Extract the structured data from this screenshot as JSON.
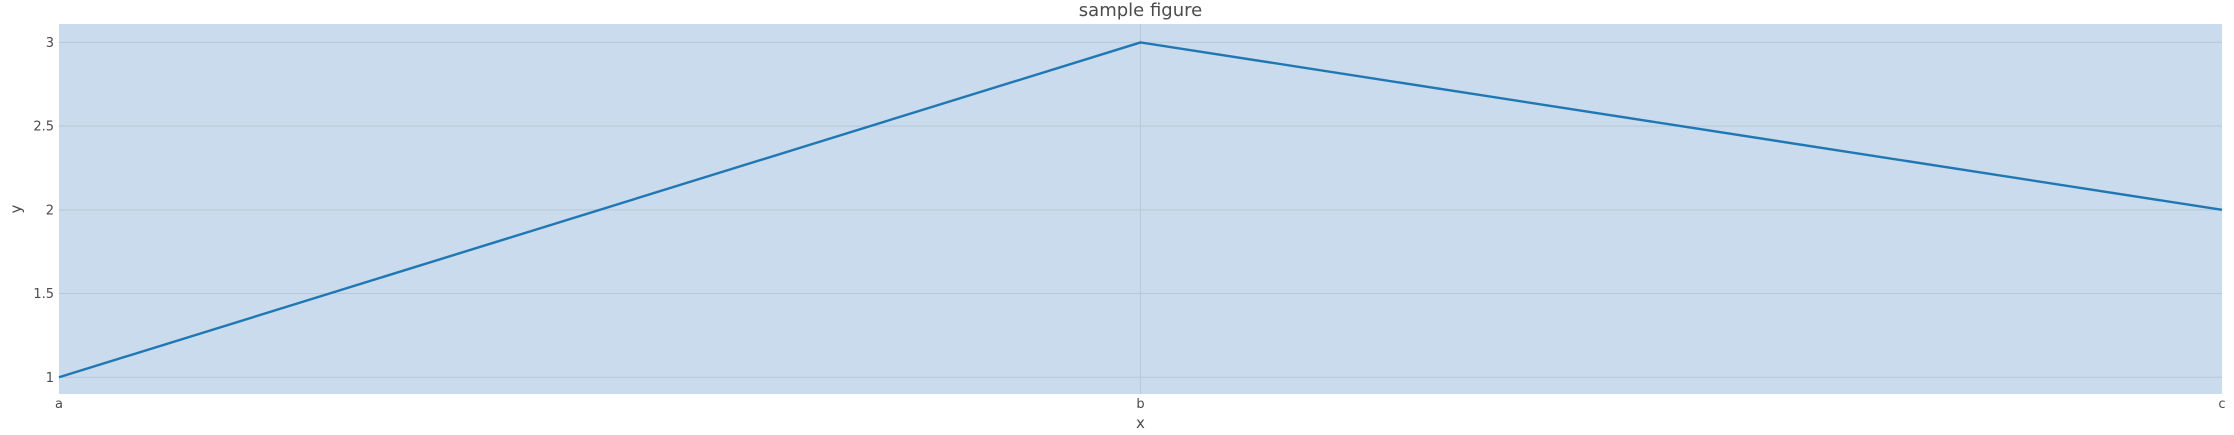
{
  "chart_data": {
    "type": "line",
    "title": "sample figure",
    "xlabel": "x",
    "ylabel": "y",
    "categories": [
      "a",
      "b",
      "c"
    ],
    "series": [
      {
        "name": "y",
        "values": [
          1,
          3,
          2
        ]
      }
    ],
    "yticks": [
      1,
      1.5,
      2,
      2.5,
      3
    ],
    "ytick_labels": [
      "1",
      "1.5",
      "2",
      "2.5",
      "3"
    ],
    "ylim": [
      0.9,
      3.11
    ],
    "grid": true,
    "legend_position": "none",
    "colors": {
      "line": "#1f77b4",
      "plot_background": "#c9dbec",
      "grid": "#b7c8d9",
      "text": "#4c4c4c",
      "page_background": "#ffffff"
    }
  }
}
